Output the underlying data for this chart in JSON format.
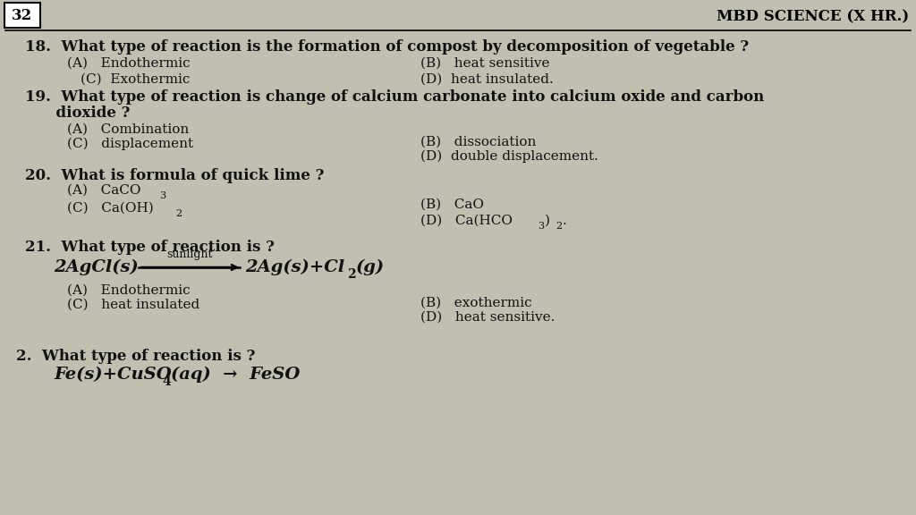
{
  "bg_color": "#c0bfb0",
  "page_num": "32",
  "header": "MBD SCIENCE (X HR.)",
  "text_color": "#111111",
  "q18": "18.  What type of reaction is the formation of compost by decomposition of vegetable ?",
  "q18_A": "(A)   Endothermic",
  "q18_B": "(B)   heat sensitive",
  "q18_C": "(C)  Exothermic",
  "q18_D": "(D)  heat insulated.",
  "q19_line1": "19.  What type of reaction is change of calcium carbonate into calcium oxide and carbon",
  "q19_line2": "      dioxide ?",
  "q19_A": "(A)   Combination",
  "q19_B": "(B)   dissociation",
  "q19_C": "(C)   displacement",
  "q19_D": "(D)  double displacement.",
  "q20": "20.  What is formula of quick lime ?",
  "q20_B": "(B)   CaO",
  "q21": "21.  What type of reaction is ?",
  "q21_A": "(A)   Endothermic",
  "q21_B": "(B)   exothermic",
  "q21_C": "(C)   heat insulated",
  "q21_D": "(D)   heat sensitive.",
  "q22_partial": "2.  What type of reaction is ?"
}
